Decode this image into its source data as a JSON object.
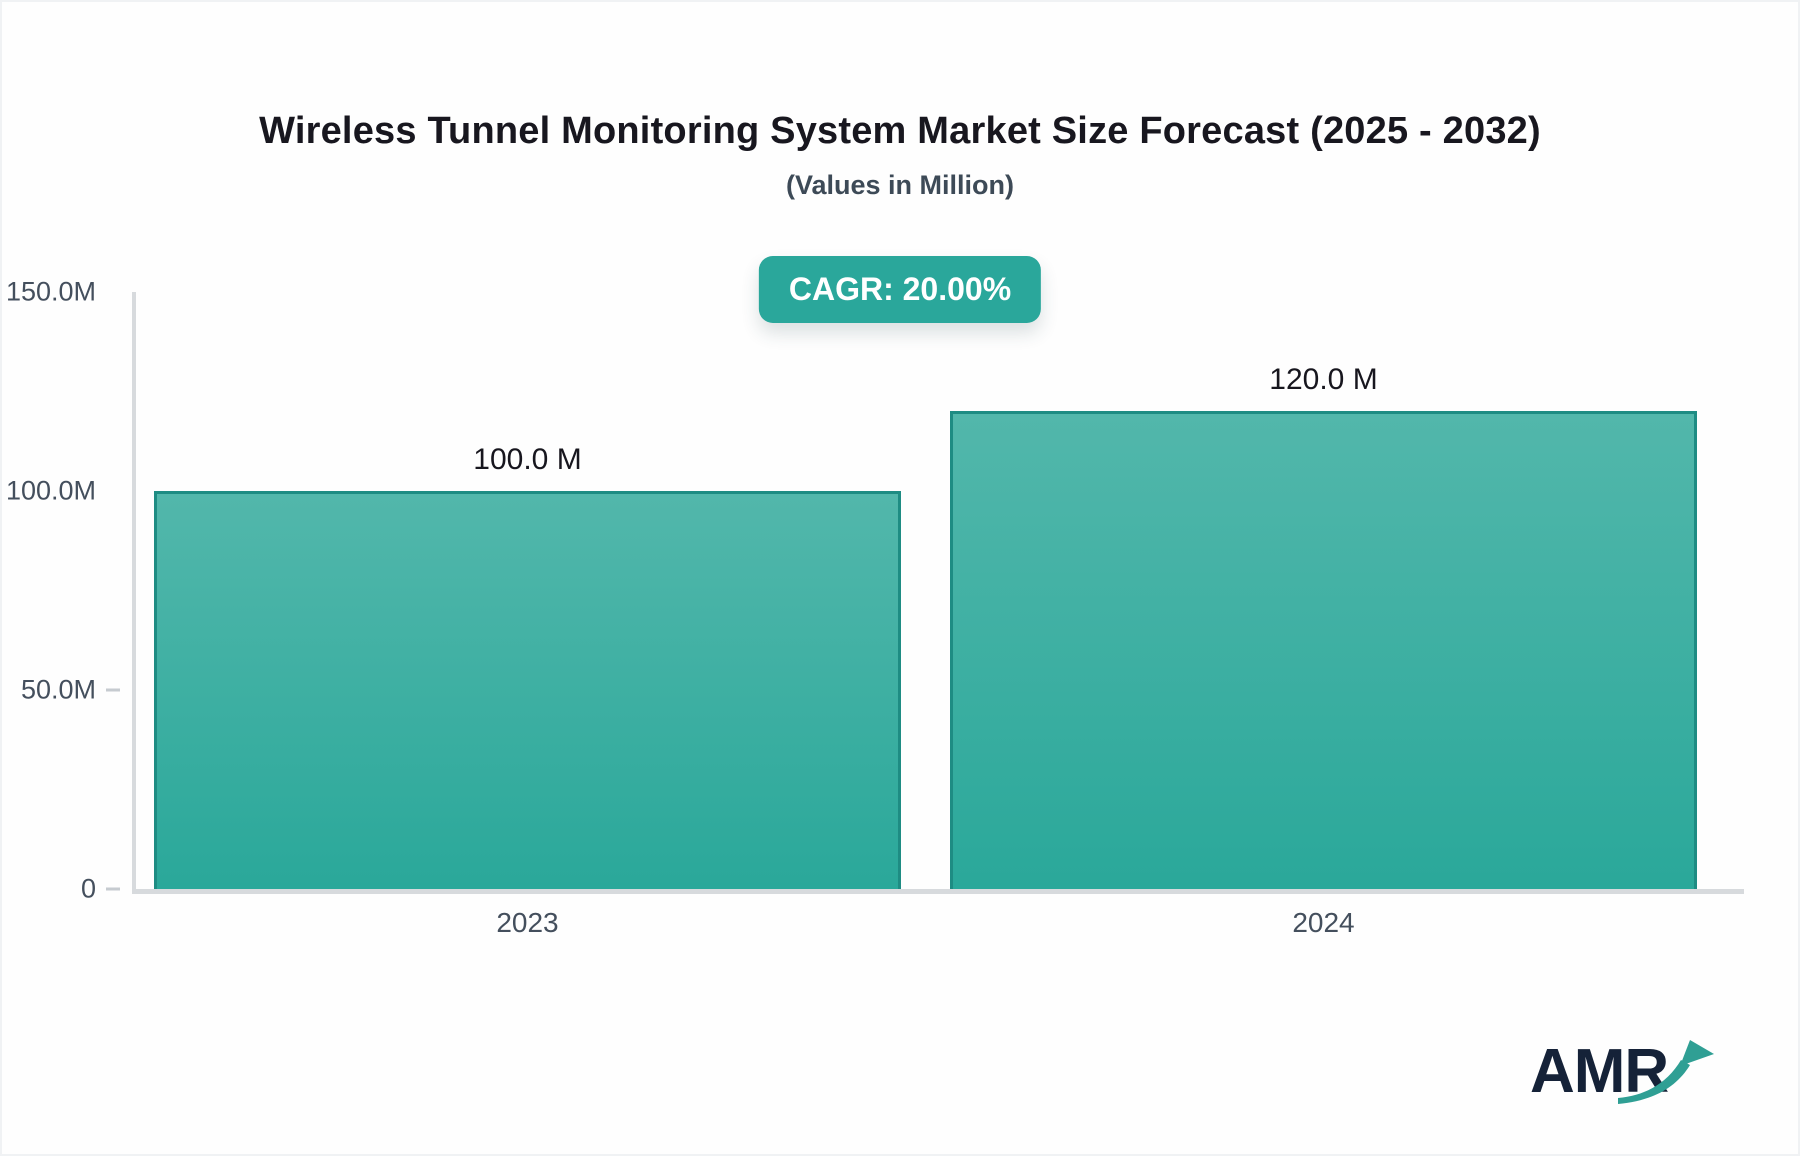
{
  "header": {
    "title": "Wireless Tunnel Monitoring System Market Size Forecast (2025 - 2032)",
    "subtitle": "(Values in Million)",
    "cagr_badge": "CAGR: 20.00%"
  },
  "chart_data": {
    "type": "bar",
    "title": "Wireless Tunnel Monitoring System Market Size Forecast (2025 - 2032)",
    "subtitle": "(Values in Million)",
    "categories": [
      "2023",
      "2024"
    ],
    "values": [
      100.0,
      120.0
    ],
    "value_labels": [
      "100.0 M",
      "120.0 M"
    ],
    "cagr": "20.00%",
    "ylim": [
      0,
      150
    ],
    "y_ticks": [
      {
        "label": "150.0M",
        "value": 150,
        "dash": false
      },
      {
        "label": "100.0M",
        "value": 100,
        "dash": false
      },
      {
        "label": "50.0M",
        "value": 50,
        "dash": true
      },
      {
        "label": "0",
        "value": 0,
        "dash": true
      }
    ],
    "grid": "off",
    "legend": "none",
    "bar_gradient_top": "#52b7ab",
    "bar_gradient_bottom": "#2aa89a",
    "bar_border": "#1e8c83"
  },
  "colors": {
    "badge_bg": "#2aa79b",
    "axis_line": "#d7dadd",
    "title_text": "#18171f",
    "subtitle_text": "#3d4a57",
    "tick_text": "#444f5d",
    "logo_navy": "#152238",
    "logo_teal": "#2f9f94"
  },
  "logo": {
    "text": "AMR"
  }
}
